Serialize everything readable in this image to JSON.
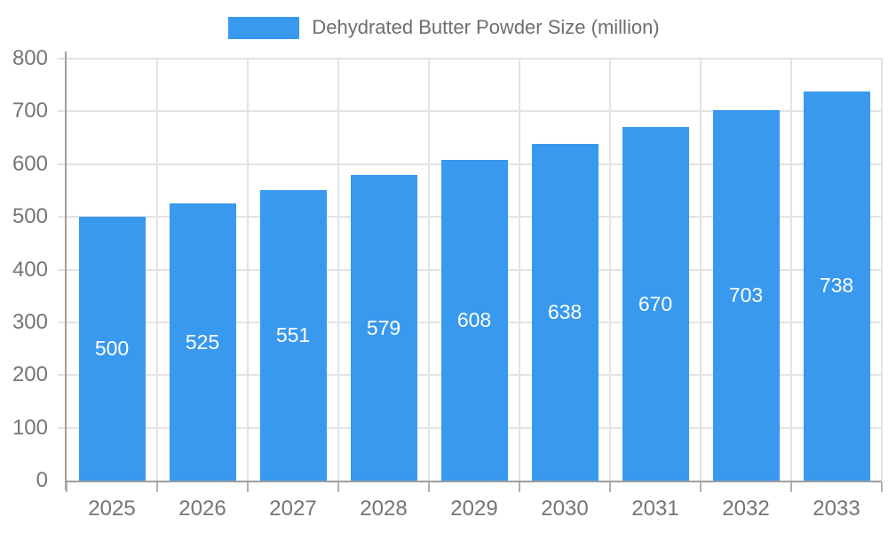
{
  "chart_data": {
    "type": "bar",
    "title": "",
    "legend_label": "Dehydrated Butter Powder Size (million)",
    "legend_position": "top",
    "categories": [
      "2025",
      "2026",
      "2027",
      "2028",
      "2029",
      "2030",
      "2031",
      "2032",
      "2033"
    ],
    "series": [
      {
        "name": "Dehydrated Butter Powder Size (million)",
        "values": [
          500,
          525,
          551,
          579,
          608,
          638,
          670,
          703,
          738
        ]
      }
    ],
    "values": [
      500,
      525,
      551,
      579,
      608,
      638,
      670,
      703,
      738
    ],
    "xlabel": "",
    "ylabel": "",
    "ylim": [
      0,
      800
    ],
    "ytick_step": 100,
    "yticks": [
      0,
      100,
      200,
      300,
      400,
      500,
      600,
      700,
      800
    ],
    "grid": true,
    "value_labels": "inside-center",
    "colors": {
      "bar": "#3899EE",
      "grid": "#e3e3e3",
      "axis": "#9e9e9e",
      "tick": "#b0b0b0",
      "tick_text": "#757575",
      "legend_text": "#6e6e6e",
      "value_text": "#ffffff",
      "background": "#ffffff"
    }
  }
}
